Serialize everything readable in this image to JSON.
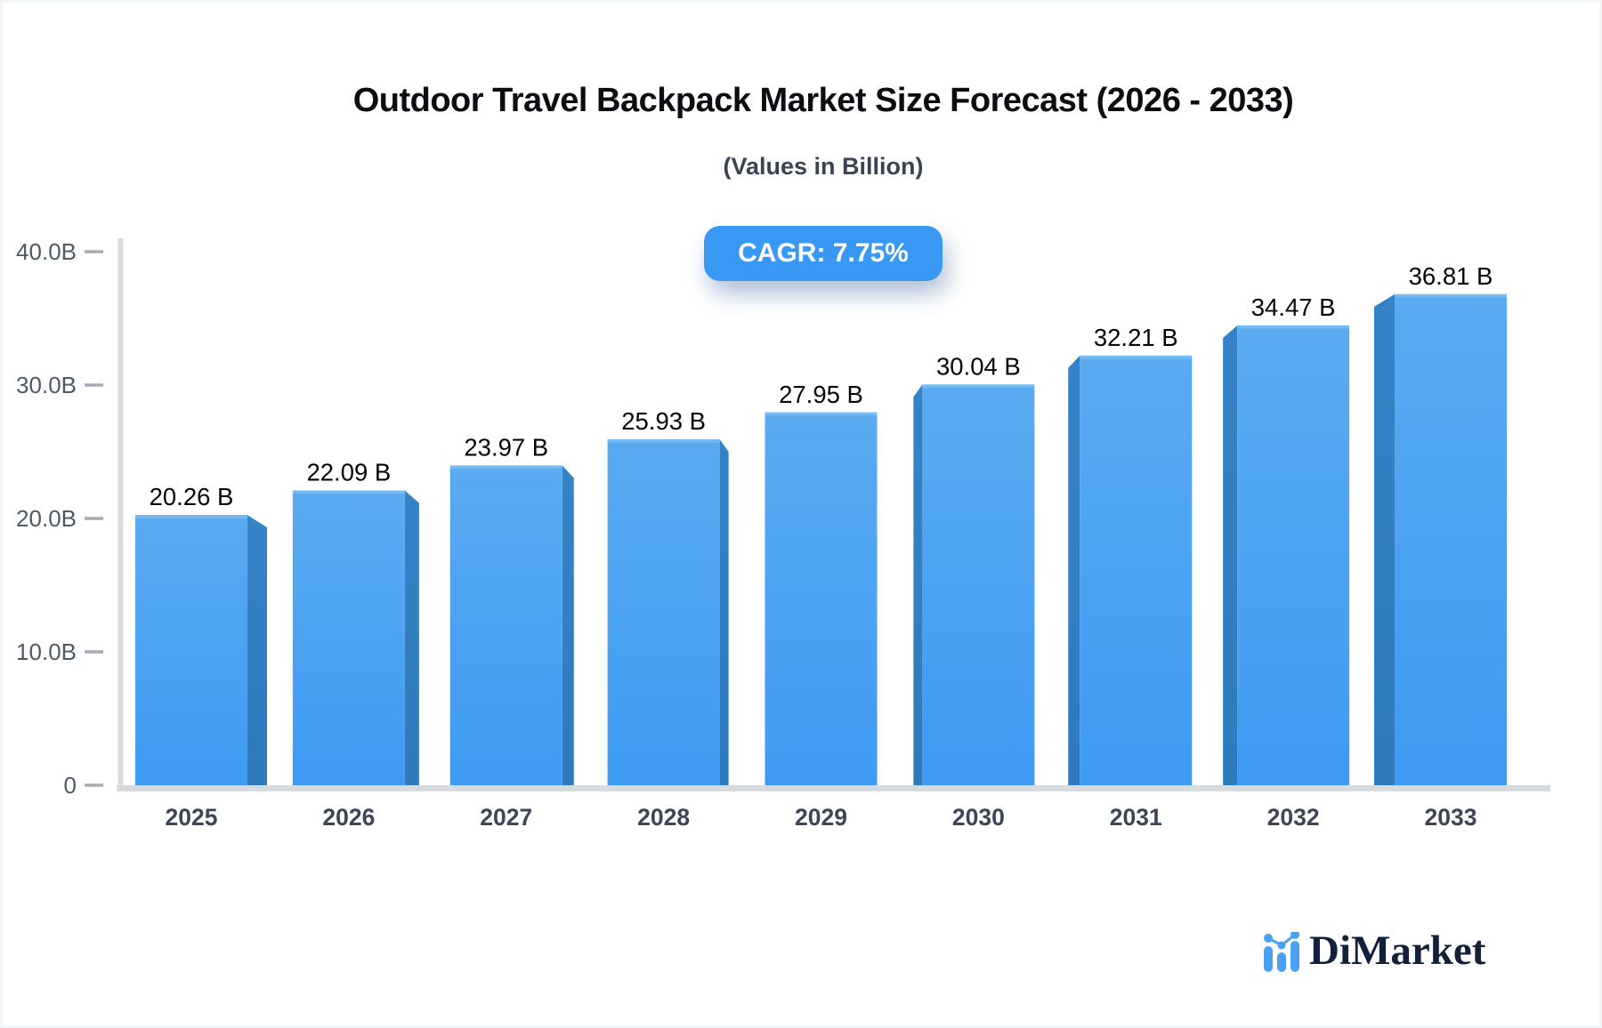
{
  "title": "Outdoor Travel Backpack Market Size Forecast (2026 - 2033)",
  "subtitle": "(Values in Billion)",
  "badge_label": "CAGR: 7.75%",
  "logo": {
    "brand": "DiMarket",
    "icon": "mini-bar-chart-icon",
    "color": "#4aa0f3",
    "text_color": "#13203a"
  },
  "colors": {
    "accent": "#3898f3",
    "bar_face_top": "#5aabf0",
    "bar_face_bottom": "#3e9af3",
    "bar_top_highlight": "#76baf4",
    "bar_side": "#2e7abb",
    "axis_line": "#d7dadf",
    "tick_dash": "#a3abb5",
    "ytick_label": "#4e5968",
    "xtick_label": "#3c4656",
    "value_label": "#060607"
  },
  "chart_data": {
    "type": "bar",
    "title": "Outdoor Travel Backpack Market Size Forecast (2026 - 2033)",
    "subtitle": "(Values in Billion)",
    "xlabel": "",
    "ylabel": "",
    "unit": "Billion",
    "categories": [
      "2025",
      "2026",
      "2027",
      "2028",
      "2029",
      "2030",
      "2031",
      "2032",
      "2033"
    ],
    "values": [
      20.26,
      22.09,
      23.97,
      25.93,
      27.95,
      30.04,
      32.21,
      34.47,
      36.81
    ],
    "value_labels": [
      "20.26 B",
      "22.09 B",
      "23.97 B",
      "25.93 B",
      "27.95 B",
      "30.04 B",
      "32.21 B",
      "34.47 B",
      "36.81 B"
    ],
    "cagr": "7.75%",
    "ylim": [
      0,
      40
    ],
    "yticks": [
      "0",
      "10.0B",
      "20.0B",
      "30.0B",
      "40.0B"
    ],
    "ytick_values": [
      0,
      10,
      20,
      30,
      40
    ],
    "grid": "off",
    "legend": "none",
    "style": "3d-bars"
  }
}
